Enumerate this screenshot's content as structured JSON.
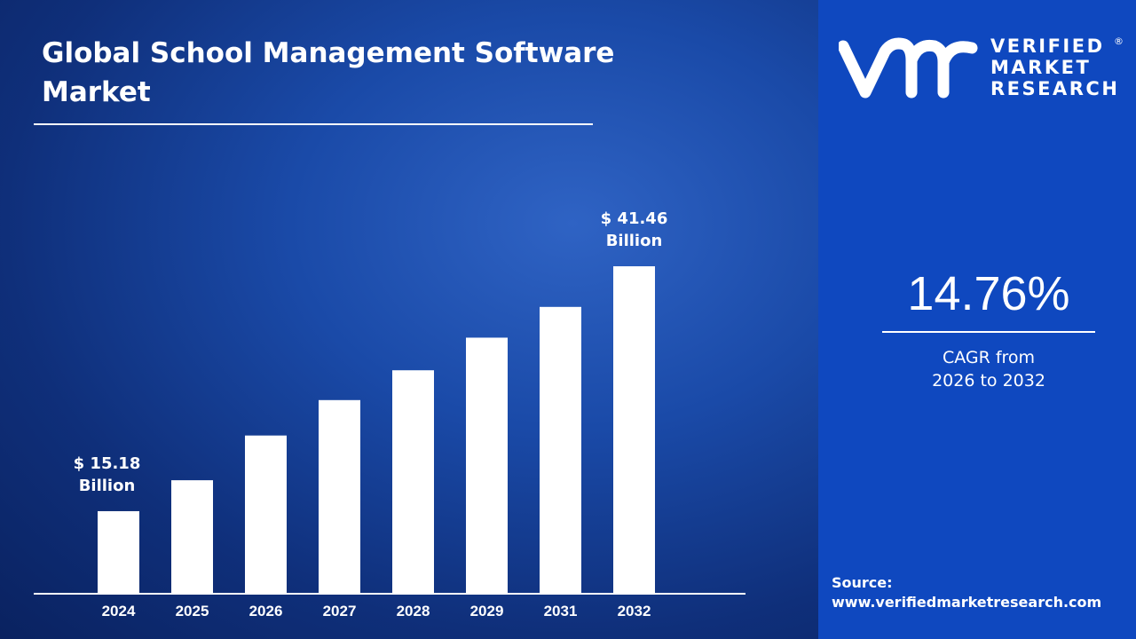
{
  "brand": {
    "name_lines": [
      "VERIFIED",
      "MARKET",
      "RESEARCH"
    ],
    "registered": "®",
    "monogram": "vmr"
  },
  "colors": {
    "panel": "#0f48bf",
    "background": "#0f2f7a",
    "bars": "#ffffff"
  },
  "cagr": {
    "value": "14.76%",
    "label_line1": "CAGR from",
    "label_line2": "2026 to 2032"
  },
  "source": {
    "label": "Source:",
    "url": "www.verifiedmarketresearch.com"
  },
  "chart_data": {
    "type": "bar",
    "title": "Global School Management Software Market",
    "categories": [
      "2024",
      "2025",
      "2026",
      "2027",
      "2028",
      "2029",
      "2031",
      "2032"
    ],
    "values": [
      15.18,
      18.5,
      23.3,
      27.1,
      30.3,
      33.8,
      37.1,
      41.46
    ],
    "data_labels": [
      {
        "category": "2024",
        "line1": "$ 15.18",
        "line2": "Billion"
      },
      {
        "category": "2032",
        "line1": "$ 41.46",
        "line2": "Billion"
      }
    ],
    "grid": false,
    "legend": "none"
  }
}
